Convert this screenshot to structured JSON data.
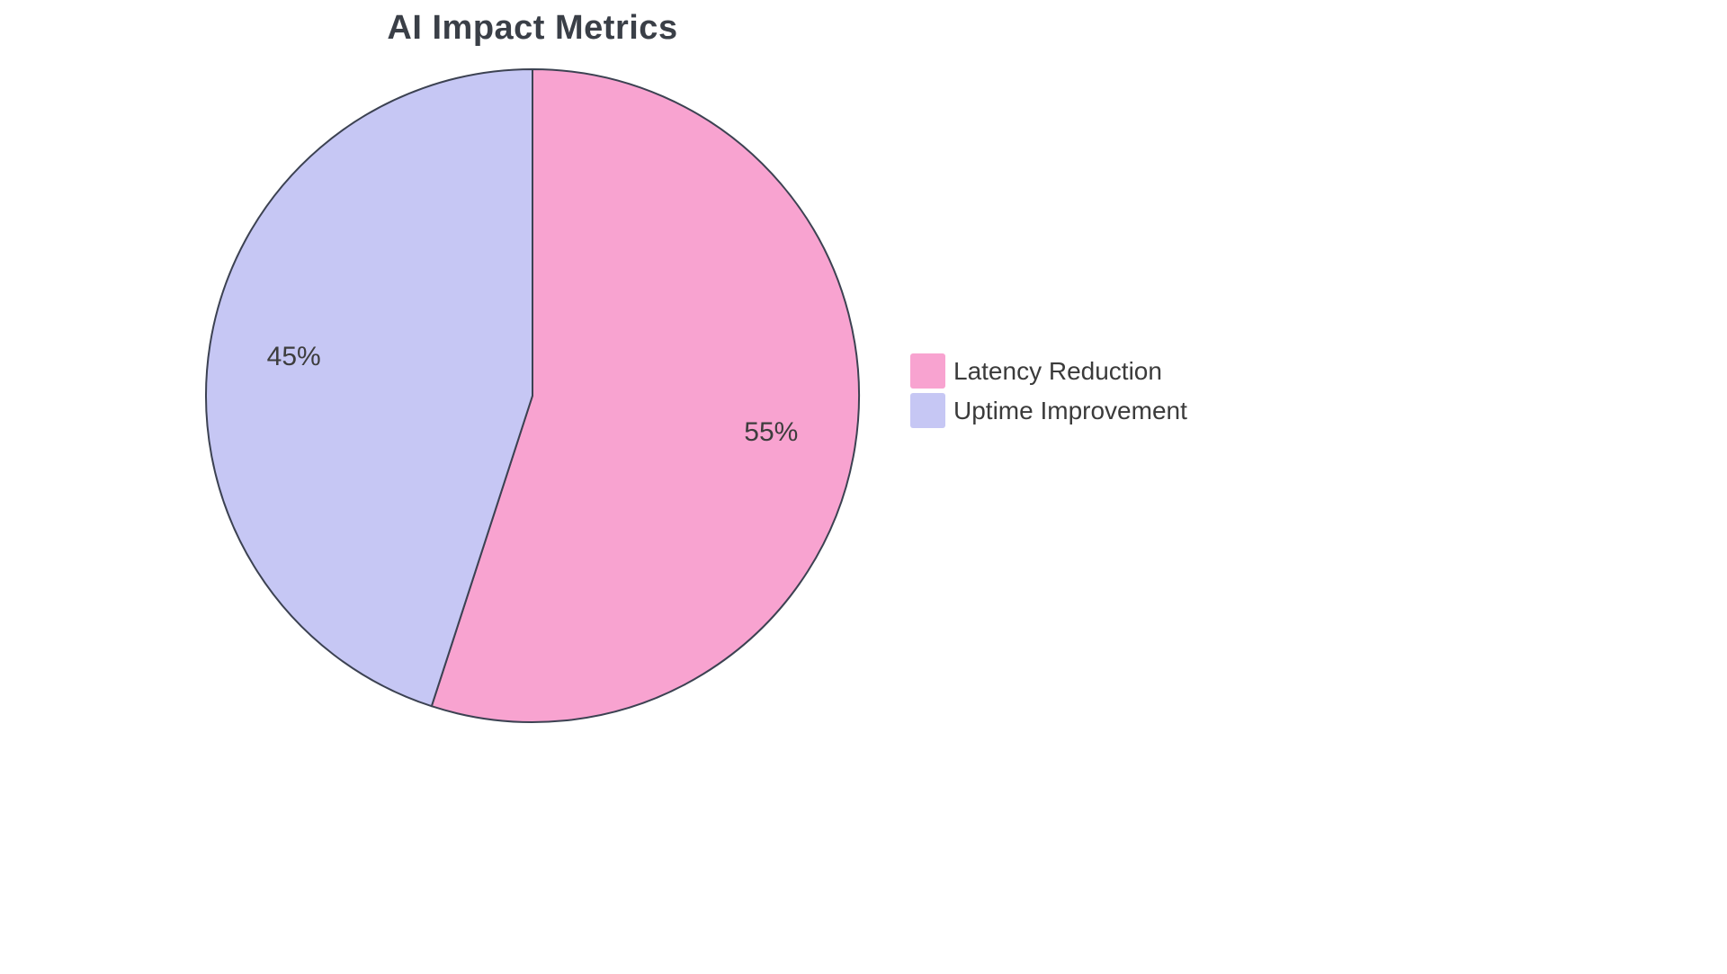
{
  "chart_data": {
    "type": "pie",
    "title": "AI Impact Metrics",
    "labels": [
      "Latency Reduction",
      "Uptime Improvement"
    ],
    "values": [
      55,
      45
    ],
    "slice_label_texts": [
      "55%",
      "45%"
    ],
    "colors": [
      "#F8A3D0",
      "#C6C7F4"
    ],
    "stroke_color": "#3C4252",
    "stroke_width": 2,
    "start_angle_deg": 0,
    "direction": "clockwise",
    "legend_position": "right",
    "legend_entries": [
      {
        "label": "Latency Reduction",
        "color": "#F8A3D0"
      },
      {
        "label": "Uptime Improvement",
        "color": "#C6C7F4"
      }
    ]
  }
}
